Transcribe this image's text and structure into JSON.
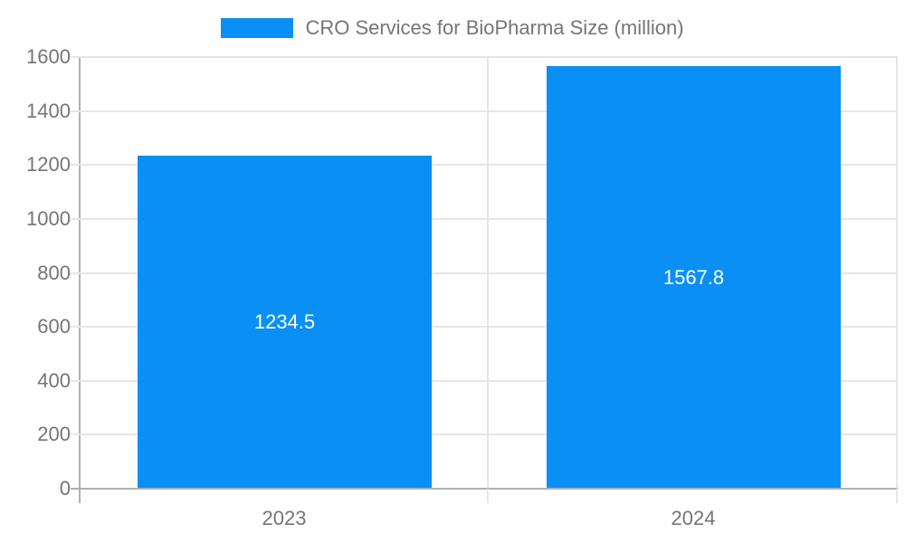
{
  "chart_data": {
    "type": "bar",
    "title": "CRO Services for BioPharma Size (million)",
    "categories": [
      "2023",
      "2024"
    ],
    "series": [
      {
        "name": "CRO Services for BioPharma Size (million)",
        "values": [
          1234.5,
          1567.8
        ]
      }
    ],
    "value_labels": [
      "1234.5",
      "1567.8"
    ],
    "xlabel": "",
    "ylabel": "",
    "ylim": [
      0,
      1600
    ],
    "ytick_step": 200,
    "yticks": [
      0,
      200,
      400,
      600,
      800,
      1000,
      1200,
      1400,
      1600
    ],
    "grid": true,
    "legend_position": "top-center",
    "colors": {
      "bar": "#0a90f5",
      "bar_value_text": "#ffffff",
      "axis_text": "#757575",
      "gridline": "#e6e6e6",
      "axis_line": "#b0b0b0",
      "background": "#ffffff"
    }
  }
}
